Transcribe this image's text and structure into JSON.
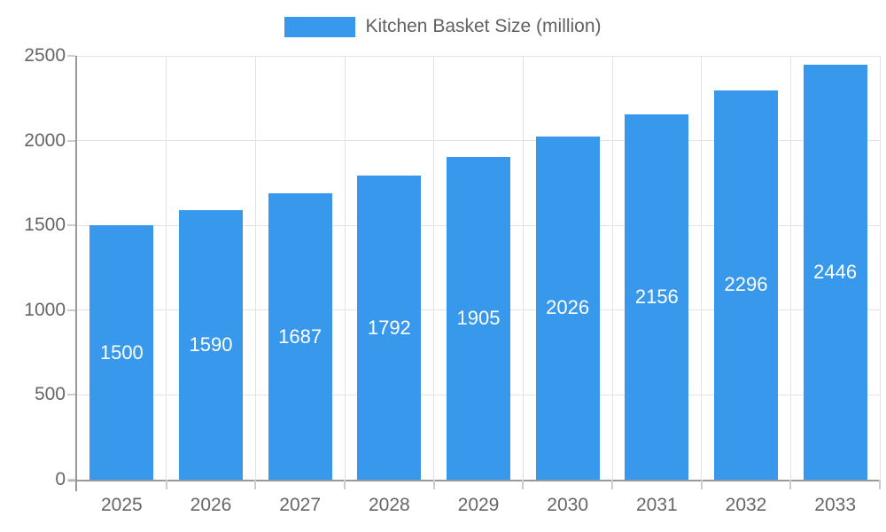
{
  "chart_data": {
    "type": "bar",
    "title": "Kitchen Basket Size (million)",
    "categories": [
      "2025",
      "2026",
      "2027",
      "2028",
      "2029",
      "2030",
      "2031",
      "2032",
      "2033"
    ],
    "values": [
      1500,
      1590,
      1687,
      1792,
      1905,
      2026,
      2156,
      2296,
      2446
    ],
    "xlabel": "",
    "ylabel": "",
    "ylim": [
      0,
      2500
    ],
    "yticks": [
      0,
      500,
      1000,
      1500,
      2000,
      2500
    ],
    "grid": true,
    "legend_position": "top",
    "value_labels": "inside-center",
    "colors": {
      "bar": "#3898EC",
      "value_label": "#ffffff",
      "grid": "#e3e3e3",
      "tick": "#cccccc",
      "axis": "#999999",
      "tick_text": "#666666",
      "legend_text": "#616161"
    }
  }
}
